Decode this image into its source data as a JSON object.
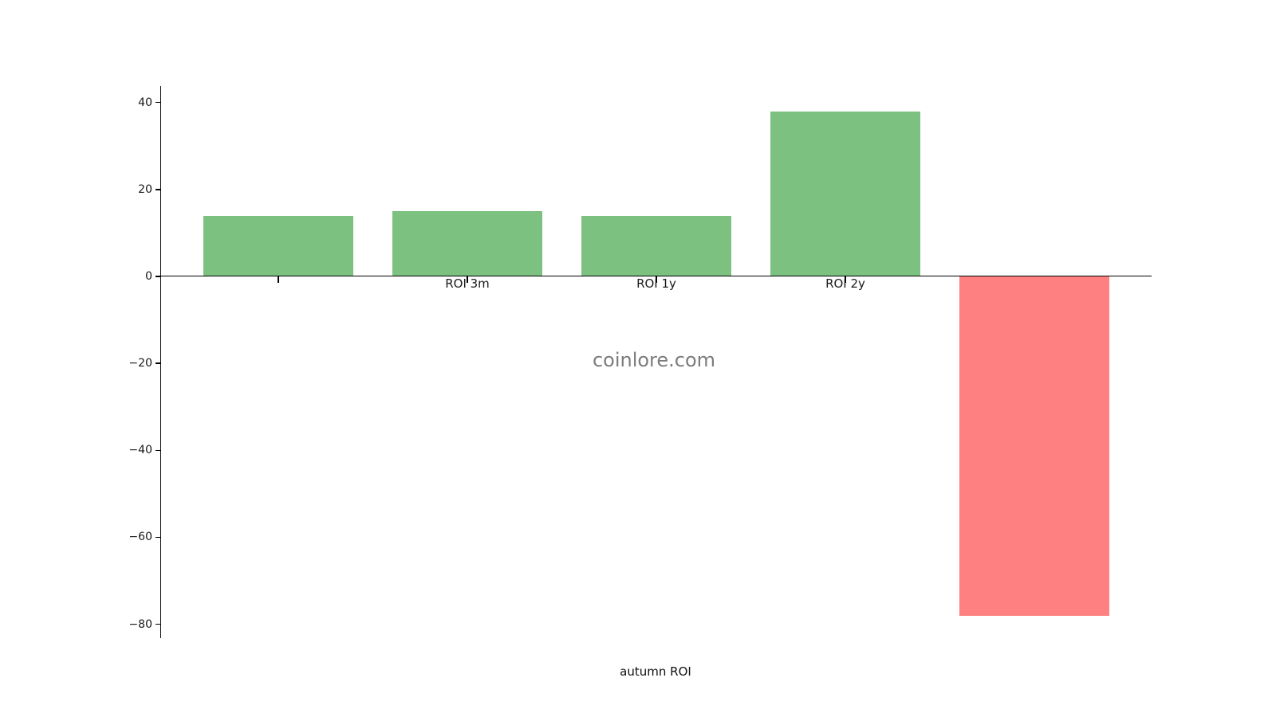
{
  "chart_data": {
    "type": "bar",
    "title": "",
    "xlabel": "autumn ROI",
    "ylabel": "",
    "categories": [
      "",
      "ROI 3m",
      "ROI 1y",
      "ROI 2y",
      ""
    ],
    "values": [
      14,
      15,
      14,
      38,
      -78
    ],
    "positive_color": "#7cc17f",
    "negative_color": "#ff8080",
    "bar_colors": [
      "#7cc17f",
      "#7cc17f",
      "#7cc17f",
      "#7cc17f",
      "#ff8080"
    ],
    "y_ticks": [
      40,
      20,
      0,
      -20,
      -40,
      -60,
      -80
    ],
    "y_tick_labels": [
      "40",
      "20",
      "0",
      "−20",
      "−40",
      "−60",
      "−80"
    ],
    "x_ticks_shown": [
      true,
      true,
      true,
      true,
      false
    ],
    "ylim": [
      -83.5,
      44
    ],
    "grid": false,
    "legend": "none",
    "axis_color": "#000000",
    "tick_label_color": "#1a1a1a"
  },
  "watermark": {
    "text": "coinlore.com",
    "color": "#7c7c7c"
  }
}
